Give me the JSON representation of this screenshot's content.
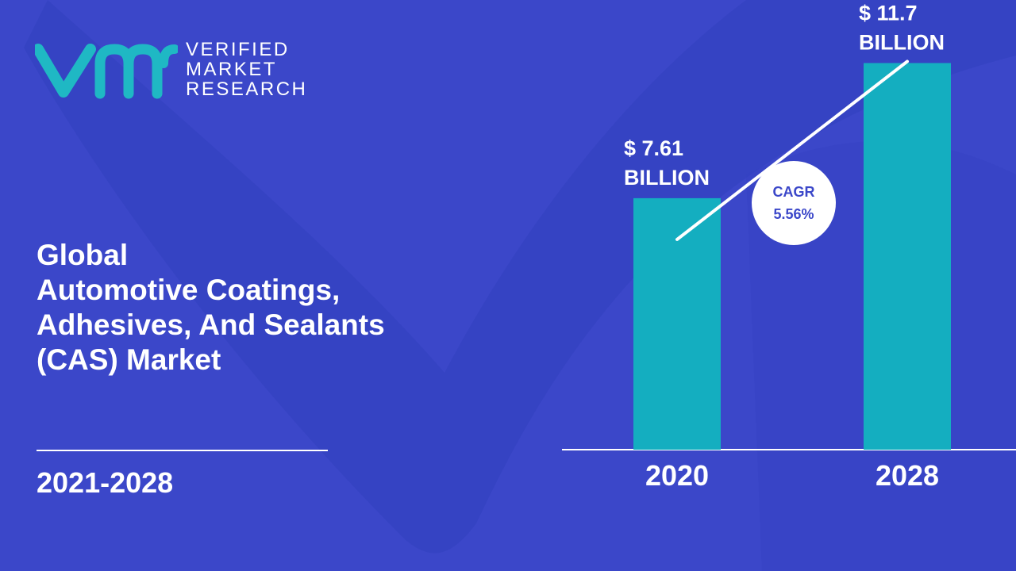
{
  "logo": {
    "line1": "VERIFIED",
    "line2": "MARKET",
    "line3": "RESEARCH"
  },
  "title_lines": [
    "Global",
    "Automotive Coatings,",
    "Adhesives, And Sealants",
    "(CAS) Market"
  ],
  "period": "2021-2028",
  "colors": {
    "background": "#3b47c9",
    "bar": "#14aec0",
    "logo_teal": "#1fb8c4",
    "text": "#ffffff",
    "cagr_text": "#3b47c9"
  },
  "chart_data": {
    "type": "bar",
    "categories": [
      "2020",
      "2028"
    ],
    "values": [
      7.61,
      11.7
    ],
    "value_labels": [
      [
        "$ 7.61",
        "BILLION"
      ],
      [
        "$ 11.7",
        "BILLION"
      ]
    ],
    "cagr_label": [
      "CAGR",
      "5.56%"
    ],
    "ylim": [
      0,
      12
    ],
    "grid": false
  }
}
